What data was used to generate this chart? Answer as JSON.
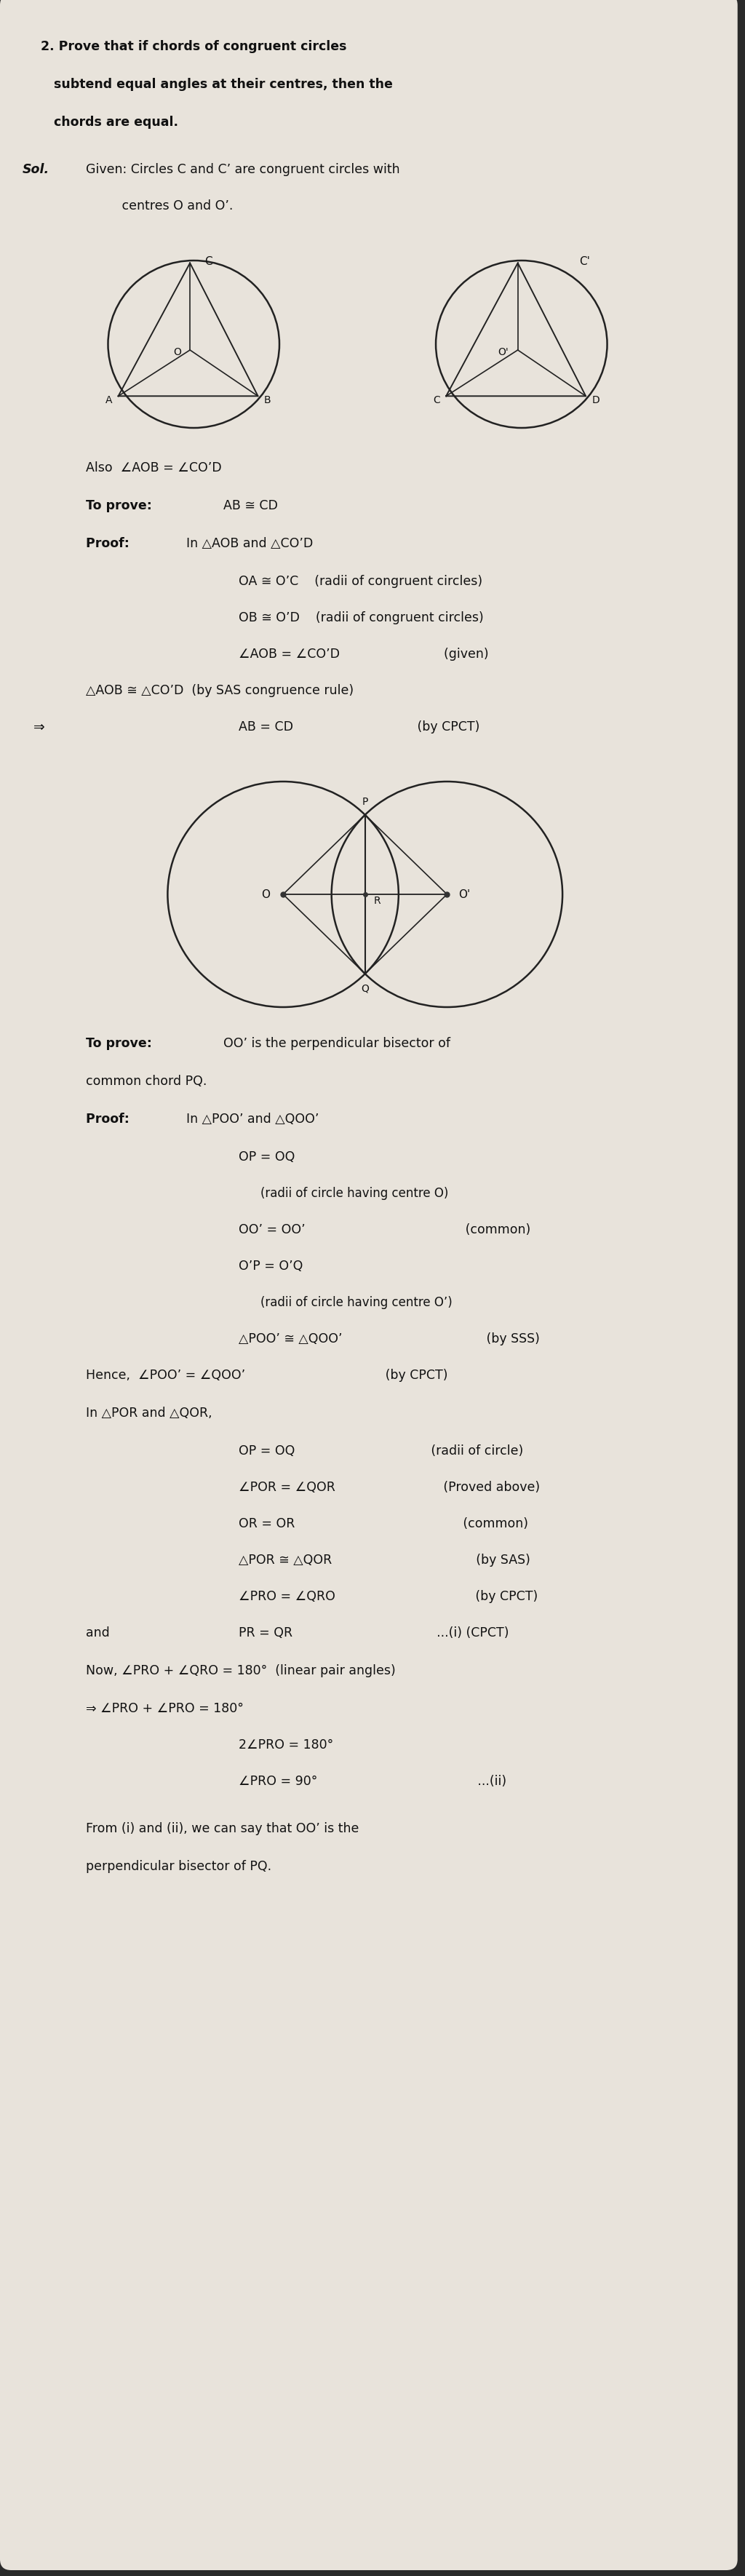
{
  "bg_color": "#2a2a2a",
  "page_bg": "#e8e3db",
  "title_line1": "2. Prove that if chords of congruent circles",
  "title_line2": "   subtend equal angles at their centres, then the",
  "title_line3": "   chords are equal.",
  "sol_label": "Sol.",
  "given_line1": "Given: Circles C and C’ are congruent circles with",
  "given_line2": "         centres O and O’.",
  "also_text": "Also  ∠AOB = ∠CO’D",
  "to_prove_bold": "To prove: ",
  "to_prove_rest": "AB ≅ CD",
  "proof_bold": "Proof: ",
  "proof_line1": "In △AOB and △CO’D",
  "proof_line2": "OA ≅ O’C    (radii of congruent circles)",
  "proof_line3": "OB ≅ O’D    (radii of congruent circles)",
  "proof_line4": "∠AOB = ∠CO’D                          (given)",
  "proof_line5": "△AOB ≅ △CO’D  (by SAS congruence rule)",
  "proof_line6": "AB = CD                               (by CPCT)",
  "arrow": "⇒",
  "to_prove2_bold": "To prove: ",
  "to_prove2_line1": "OO’ is the perpendicular bisector of",
  "to_prove2_line2": "common chord PQ.",
  "proof2_bold": "Proof: ",
  "proof2_line1": "In △POO’ and △QOO’",
  "proof2_line2": "OP = OQ",
  "proof2_line3": "(radii of circle having centre O)",
  "proof2_line4": "OO’ = OO’                                        (common)",
  "proof2_line5": "O’P = O’Q",
  "proof2_line6": "(radii of circle having centre O’)",
  "proof2_line7": "△POO’ ≅ △QOO’                                    (by SSS)",
  "proof2_line8": "∠POO’ = ∠QOO’                                   (by CPCT)",
  "hence_label": "Hence,",
  "in_label": "In △POR and △QOR,",
  "proof2_line9": "OP = OQ                                  (radii of circle)",
  "proof2_line10": "∠POR = ∠QOR                           (Proved above)",
  "proof2_line11": "OR = OR                                          (common)",
  "proof2_line12": "△POR ≅ △QOR                                    (by SAS)",
  "proof2_line13": "∠PRO = ∠QRO                                   (by CPCT)",
  "and_label": "and",
  "proof2_line14": "PR = QR                                    ...(i) (CPCT)",
  "proof2_now": "Now, ∠PRO + ∠QRO = 180°  (linear pair angles)",
  "proof2_line15": "⇒ ∠PRO + ∠PRO = 180°",
  "proof2_line16": "2∠PRO = 180°",
  "proof2_line17": "∠PRO = 90°                                        ...(ii)",
  "concl_line1": "From (i) and (ii), we can say that OO’ is the",
  "concl_line2": "perpendicular bisector of PQ."
}
